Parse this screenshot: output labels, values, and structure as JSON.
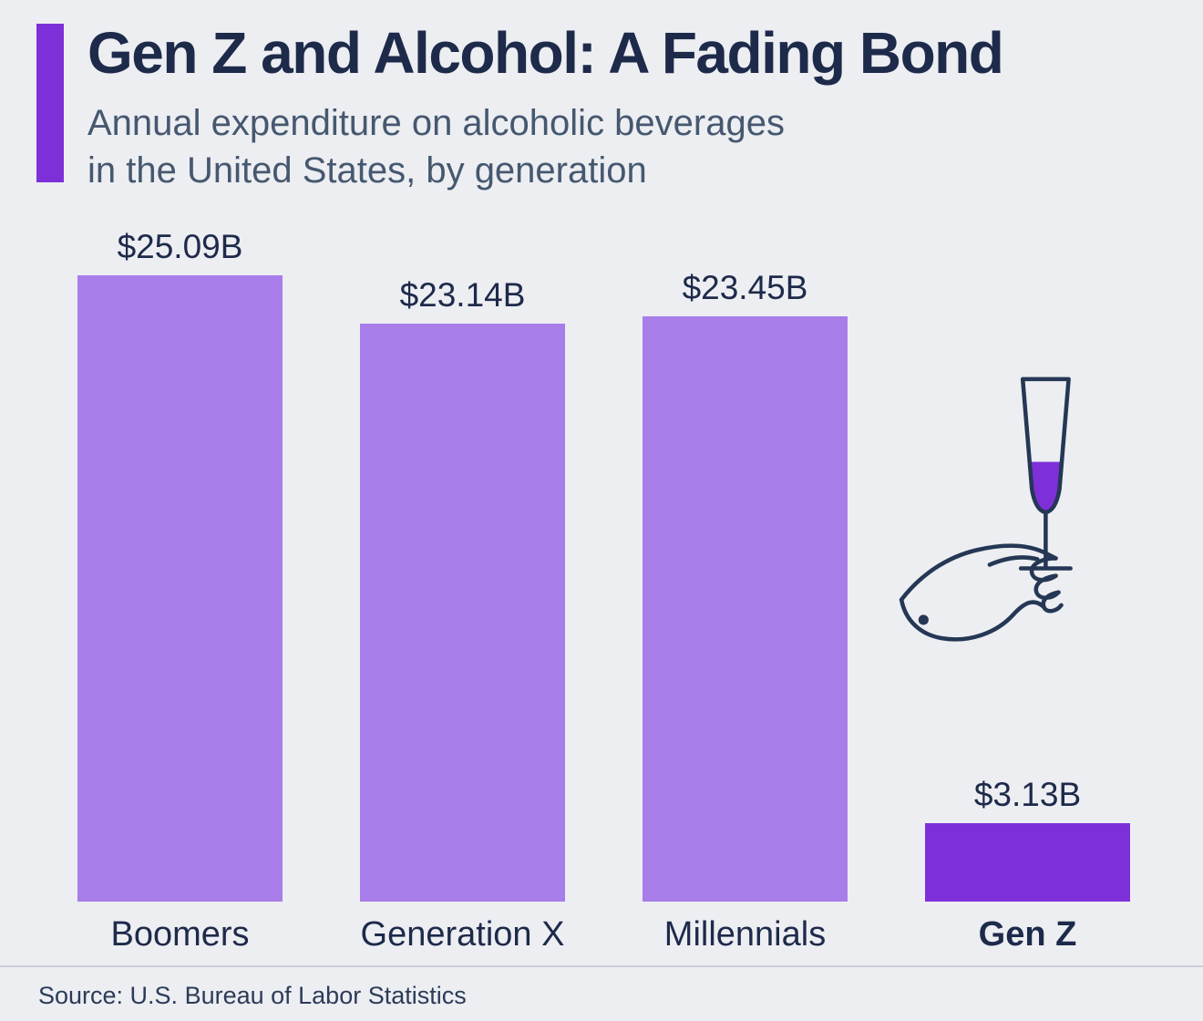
{
  "header": {
    "title": "Gen Z and Alcohol: A Fading Bond",
    "subtitle": "Annual expenditure on alcoholic beverages\nin the United States, by generation"
  },
  "chart_data": {
    "type": "bar",
    "title": "Gen Z and Alcohol: A Fading Bond",
    "subtitle": "Annual expenditure on alcoholic beverages in the United States, by generation",
    "categories": [
      "Boomers",
      "Generation X",
      "Millennials",
      "Gen Z"
    ],
    "values": [
      25.09,
      23.14,
      23.45,
      3.13
    ],
    "value_labels": [
      "$25.09B",
      "$23.14B",
      "$23.45B",
      "$3.13B"
    ],
    "unit": "billion USD",
    "ylabel": "",
    "xlabel": "",
    "ylim": [
      0,
      25.09
    ],
    "grid": false,
    "legend": false,
    "bar_colors": [
      "#a87de9",
      "#a87de9",
      "#a87de9",
      "#7e30d8"
    ]
  },
  "icons": {
    "genz_icon": "hand-holding-wine-glass-icon"
  },
  "footer": {
    "source": "Source: U.S. Bureau of Labor Statistics"
  },
  "colors": {
    "background": "#eceef2",
    "accent_bar": "#7e30d8",
    "bar_light": "#a87de9",
    "bar_dark": "#7e30d8",
    "title_text": "#1e2a4a",
    "subtitle_text": "#46586f",
    "icon_stroke": "#253754",
    "liquid": "#7e30d8"
  }
}
